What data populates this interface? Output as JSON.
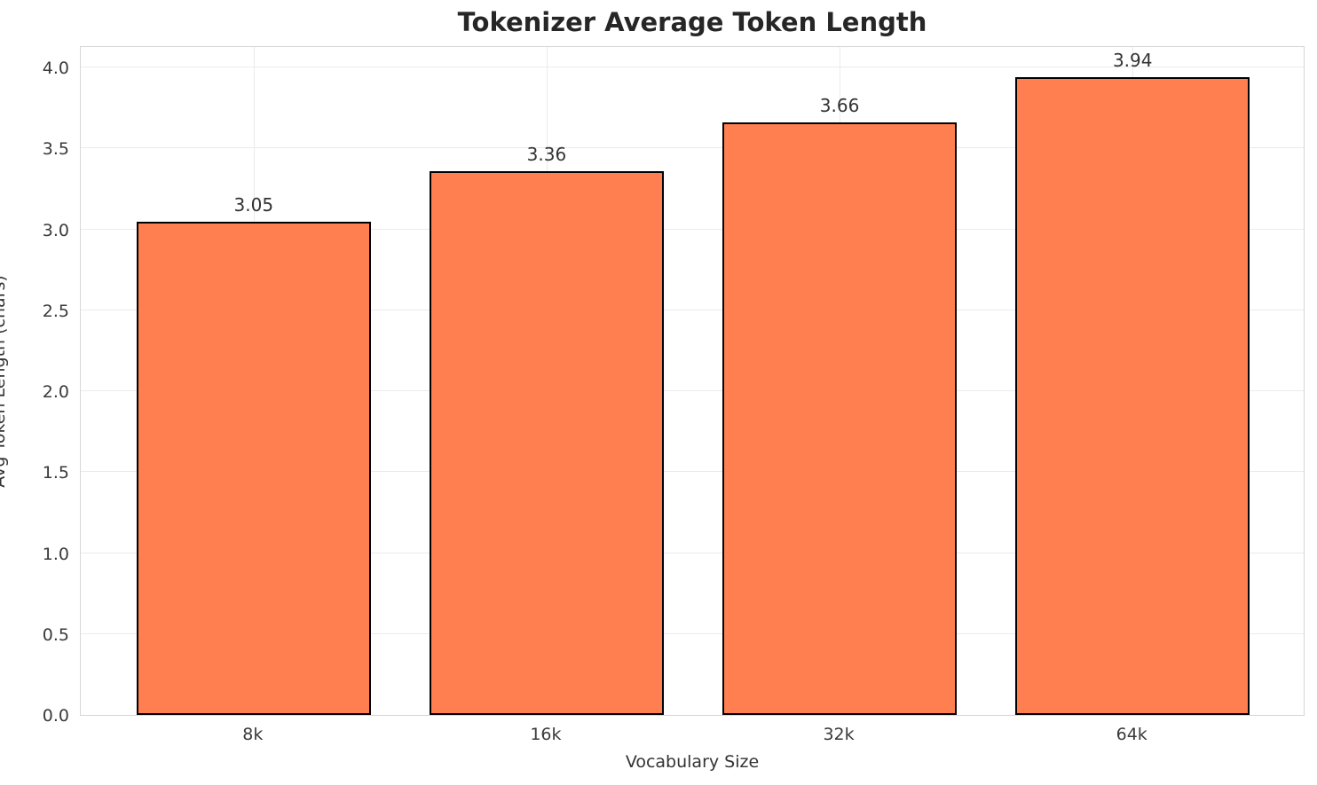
{
  "chart_data": {
    "type": "bar",
    "title": "Tokenizer Average Token Length",
    "xlabel": "Vocabulary Size",
    "ylabel": "Avg Token Length (chars)",
    "categories": [
      "8k",
      "16k",
      "32k",
      "64k"
    ],
    "values": [
      3.05,
      3.36,
      3.66,
      3.94
    ],
    "bar_labels": [
      "3.05",
      "3.36",
      "3.66",
      "3.94"
    ],
    "ytick_labels": [
      "0.0",
      "0.5",
      "1.0",
      "1.5",
      "2.0",
      "2.5",
      "3.0",
      "3.5",
      "4.0"
    ],
    "ylim": [
      0,
      4.138
    ],
    "grid": "on",
    "legend": "none",
    "bar_color": "#FF7F50",
    "bar_edge_color": "#000000",
    "grid_color": "#ebebeb",
    "spine_color": "#d6d6d6",
    "title_color": "#262626",
    "text_color": "#333333"
  }
}
